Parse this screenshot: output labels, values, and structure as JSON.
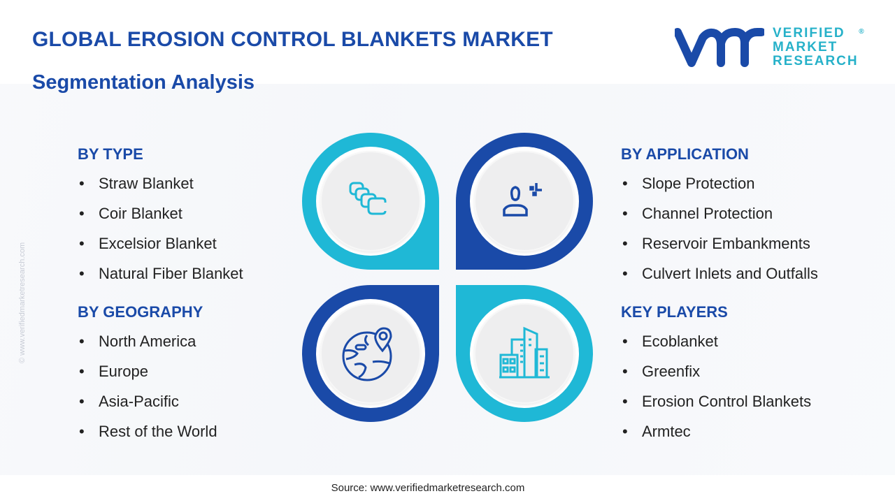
{
  "header": {
    "title": "GLOBAL EROSION CONTROL BLANKETS MARKET",
    "subtitle": "Segmentation Analysis"
  },
  "logo": {
    "line1": "VERIFIED",
    "line2": "MARKET",
    "line3": "RESEARCH",
    "reg": "®"
  },
  "side_watermark": "© www.verifiedmarketresearch.com",
  "bullet": "•",
  "sections": {
    "type": {
      "heading": "BY TYPE",
      "items": [
        "Straw Blanket",
        "Coir Blanket",
        "Excelsior Blanket",
        "Natural Fiber Blanket"
      ]
    },
    "geography": {
      "heading": "BY GEOGRAPHY",
      "items": [
        "North America",
        "Europe",
        "Asia-Pacific",
        "Rest of the World"
      ]
    },
    "application": {
      "heading": "BY APPLICATION",
      "items": [
        "Slope Protection",
        "Channel Protection",
        "Reservoir Embankments",
        "Culvert Inlets and Outfalls"
      ]
    },
    "players": {
      "heading": "KEY PLAYERS",
      "items": [
        "Ecoblanket",
        "Greenfix",
        "Erosion Control Blankets",
        "Armtec"
      ]
    }
  },
  "colors": {
    "dark": "#1a4aa8",
    "cyan": "#1fb8d6"
  },
  "source": "Source: www.verifiedmarketresearch.com"
}
